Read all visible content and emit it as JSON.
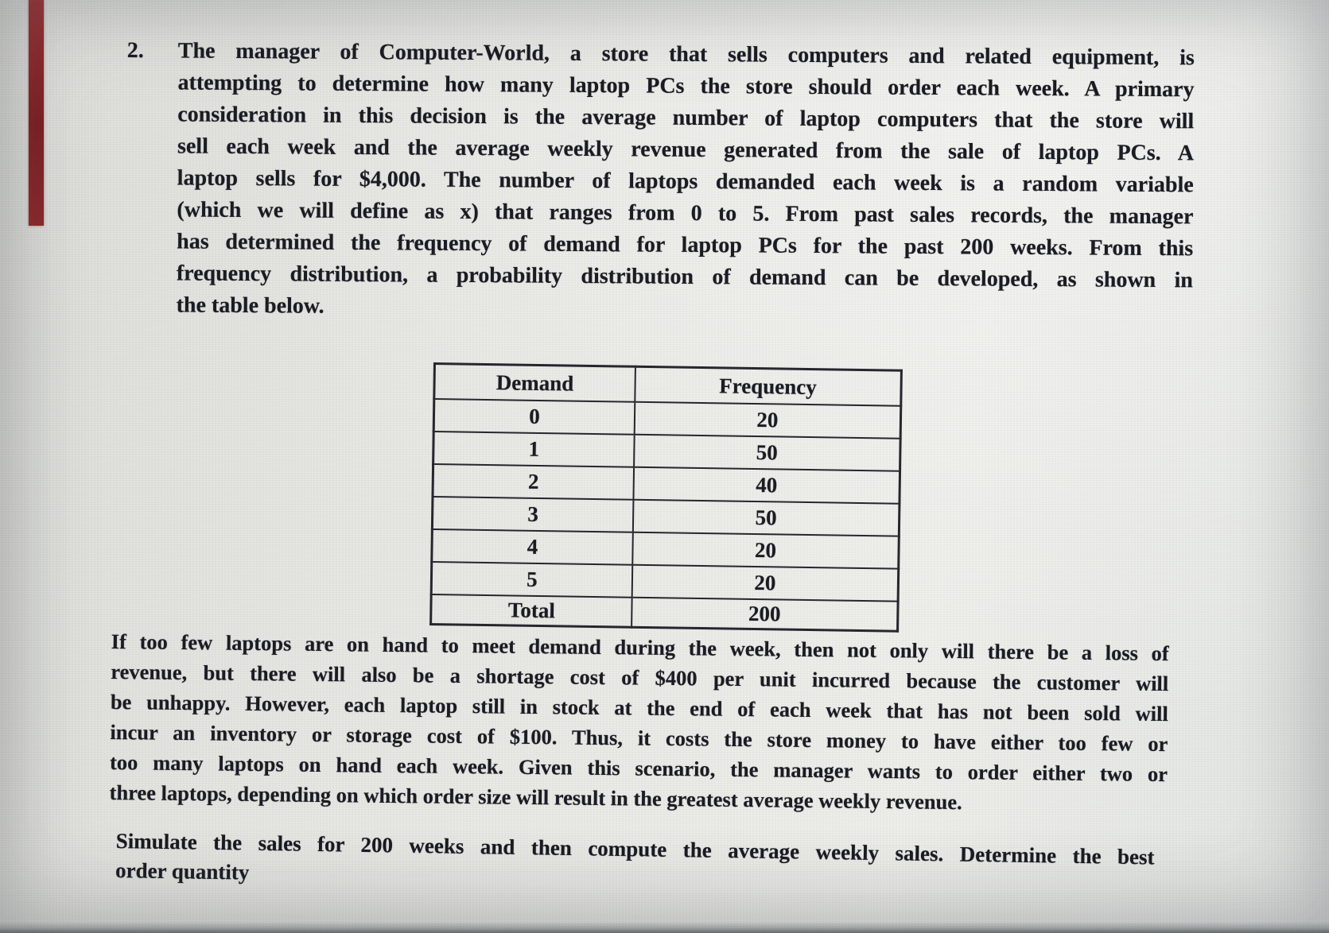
{
  "page": {
    "item_number": "2.",
    "paragraph1_lines": [
      "The manager of Computer-World, a store that sells computers and related equipment, is",
      "attempting to determine how many laptop PCs the store should order each week. A primary",
      "consideration in this decision is the average number of laptop computers that the store will",
      "sell each week and the average weekly revenue generated from the sale of laptop PCs. A",
      "laptop sells for $4,000. The number of laptops demanded each week is a random variable",
      "(which we will define as x) that ranges from 0 to 5. From past sales records, the manager",
      "has determined the frequency of demand for laptop PCs for the past 200 weeks. From this",
      "frequency distribution, a probability distribution of demand can be developed, as shown in",
      "the table below."
    ],
    "paragraph2_lines": [
      "If too few laptops are on hand to meet demand during the week, then not only will there be a loss of",
      "revenue, but there will also be a shortage cost of $400 per unit incurred because the customer will",
      "be unhappy. However, each laptop still in stock at the end of each week that has not been sold will",
      "incur an inventory or storage cost of $100. Thus, it costs the store money to have either too few or",
      "too many laptops on hand each week. Given this scenario, the manager wants to order either two or",
      "three laptops, depending on which order size will result in the greatest average weekly revenue."
    ],
    "paragraph3_lines": [
      "Simulate the sales for 200 weeks and then compute the average weekly sales. Determine the best",
      "order quantity"
    ]
  },
  "table": {
    "col_headers": [
      "Demand",
      "Frequency"
    ],
    "rows": [
      [
        "0",
        "20"
      ],
      [
        "1",
        "50"
      ],
      [
        "2",
        "40"
      ],
      [
        "3",
        "50"
      ],
      [
        "4",
        "20"
      ],
      [
        "5",
        "20"
      ]
    ],
    "total_label": "Total",
    "total_value": "200"
  },
  "colors": {
    "paper": "#e8e8e4",
    "ink": "#1b1b24",
    "table_border": "#26262e",
    "margin_stripe": "#8c282b"
  }
}
